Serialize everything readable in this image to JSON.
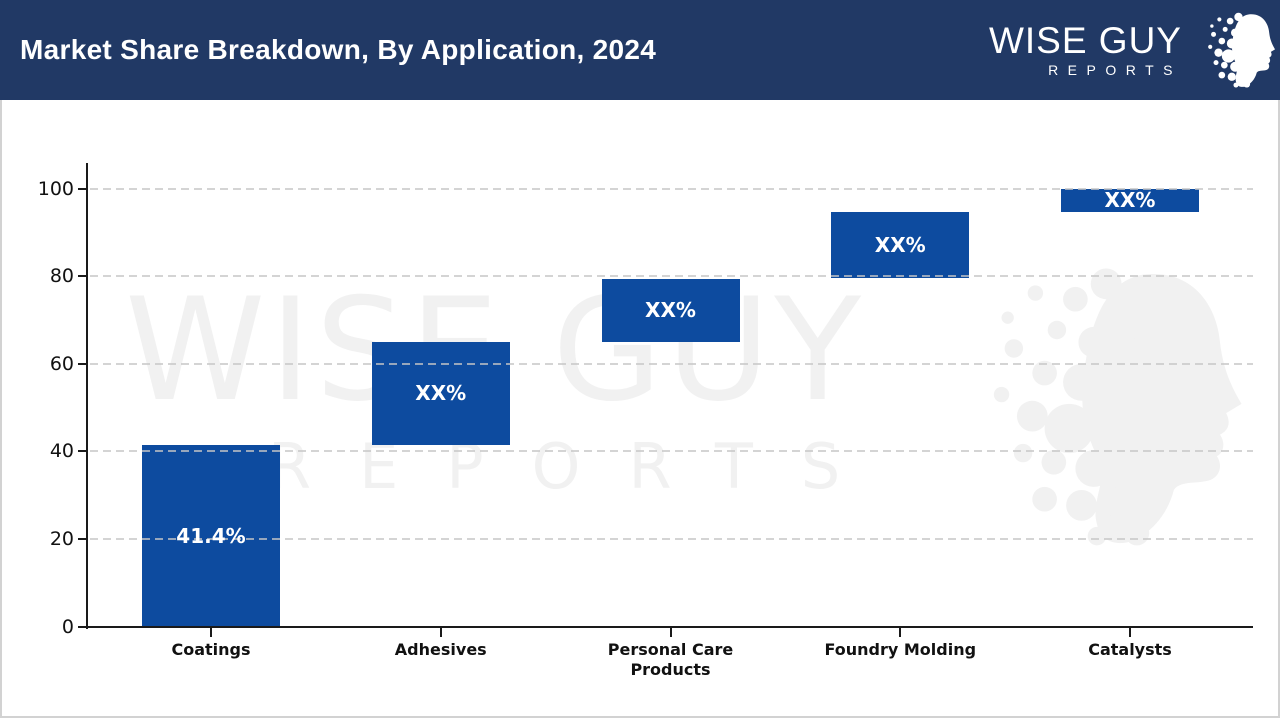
{
  "header": {
    "title": "Market Share Breakdown, By Application, 2024",
    "logo": {
      "line1": "WISE GUY",
      "line2": "REPORTS"
    }
  },
  "watermark": {
    "line1": "WISE GUY",
    "line2": "REPORTS"
  },
  "colors": {
    "header_bg": "#213965",
    "bar_blue": "#0D4B9F",
    "grid_gray": "#c6c6c6",
    "axis_black": "#1a1a1a",
    "watermark_gray": "#f1f1f1",
    "page_border": "#d2d2d2",
    "bar_label_white": "#ffffff"
  },
  "chart_data": {
    "type": "bar",
    "subtype": "waterfall",
    "title": "Market Share Breakdown, By Application, 2024",
    "categories": [
      "Coatings",
      "Adhesives",
      "Personal Care Products",
      "Foundry Molding",
      "Catalysts"
    ],
    "segments": [
      {
        "category": "Coatings",
        "start": 0,
        "end": 41.4,
        "label": "41.4%"
      },
      {
        "category": "Adhesives",
        "start": 41.4,
        "end": 65.0,
        "label": "XX%"
      },
      {
        "category": "Personal Care Products",
        "start": 65.0,
        "end": 79.4,
        "label": "XX%"
      },
      {
        "category": "Foundry Molding",
        "start": 79.6,
        "end": 94.7,
        "label": "XX%"
      },
      {
        "category": "Catalysts",
        "start": 94.7,
        "end": 100.0,
        "label": "XX%"
      }
    ],
    "yticks": [
      0,
      20,
      40,
      60,
      80,
      100
    ],
    "ylim": [
      0,
      106
    ],
    "xlabel": "",
    "ylabel": "",
    "grid": "horizontal-dashed",
    "legend": "none"
  }
}
